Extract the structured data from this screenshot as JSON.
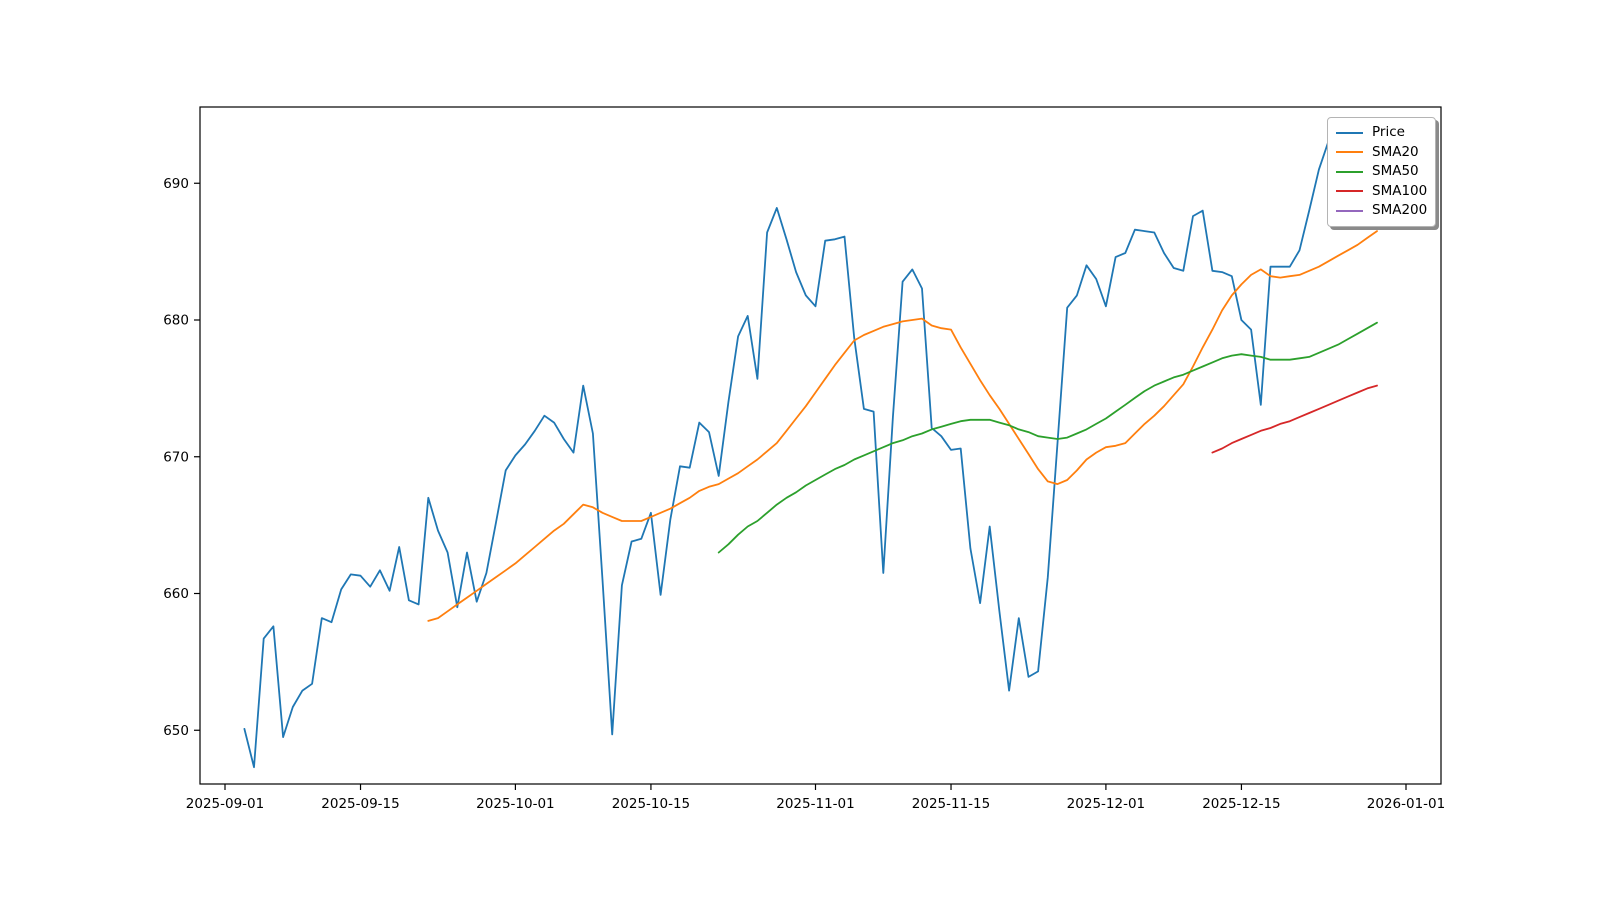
{
  "figure": {
    "background": "#ffffff"
  },
  "axes": {
    "spine_color": "#000000",
    "x_tick_labels": [
      "2025-09-01",
      "2025-09-15",
      "2025-10-01",
      "2025-10-15",
      "2025-11-01",
      "2025-11-15",
      "2025-12-01",
      "2025-12-15",
      "2026-01-01"
    ],
    "y_tick_labels": [
      "650",
      "660",
      "670",
      "680",
      "690"
    ]
  },
  "legend": {
    "position": "upper right",
    "entries": [
      {
        "label": "Price",
        "color": "#1f77b4"
      },
      {
        "label": "SMA20",
        "color": "#ff7f0e"
      },
      {
        "label": "SMA50",
        "color": "#2ca02c"
      },
      {
        "label": "SMA100",
        "color": "#d62728"
      },
      {
        "label": "SMA200",
        "color": "#9467bd"
      }
    ]
  },
  "chart_data": {
    "type": "line",
    "title": "",
    "xlabel": "",
    "ylabel": "",
    "x_axis_kind": "date",
    "xlim": [
      "2025-08-29",
      "2026-01-04"
    ],
    "ylim": [
      646.1,
      695.6
    ],
    "grid": false,
    "legend_position": "upper right",
    "series": [
      {
        "name": "Price",
        "color": "#1f77b4",
        "start": "2025-09-03",
        "values": [
          650.1,
          647.3,
          656.7,
          657.6,
          649.5,
          651.7,
          652.9,
          653.4,
          658.2,
          657.9,
          660.3,
          661.4,
          661.3,
          660.5,
          661.7,
          660.2,
          663.4,
          659.5,
          659.2,
          667.0,
          664.6,
          663.0,
          659.0,
          663.0,
          659.4,
          661.5,
          665.2,
          669.0,
          670.1,
          670.9,
          671.9,
          673.0,
          672.5,
          671.3,
          670.3,
          675.2,
          671.7,
          661.0,
          649.7,
          660.6,
          663.8,
          664.0,
          665.9,
          659.9,
          665.4,
          669.3,
          669.2,
          672.5,
          671.8,
          668.6,
          674.0,
          678.8,
          680.3,
          675.7,
          686.4,
          688.2,
          685.9,
          683.5,
          681.8,
          681.0,
          685.8,
          685.9,
          686.1,
          678.7,
          673.5,
          673.3,
          661.5,
          672.9,
          682.8,
          683.7,
          682.3,
          672.1,
          671.5,
          670.5,
          670.6,
          663.3,
          659.3,
          664.9,
          658.7,
          652.9,
          658.2,
          653.9,
          654.3,
          661.2,
          671.0,
          680.9,
          681.8,
          684.0,
          683.0,
          681.0,
          684.6,
          684.9,
          686.6,
          686.5,
          686.4,
          684.9,
          683.8,
          683.6,
          687.6,
          688.0,
          683.6,
          683.5,
          683.2,
          680.0,
          679.3,
          673.8,
          683.9,
          683.9,
          683.9,
          685.1,
          688.0,
          691.0,
          693.1
        ]
      },
      {
        "name": "SMA20",
        "color": "#ff7f0e",
        "start": "2025-09-22",
        "values": [
          658.0,
          658.2,
          658.7,
          659.2,
          659.7,
          660.2,
          660.7,
          661.2,
          661.7,
          662.2,
          662.8,
          663.4,
          664.0,
          664.6,
          665.1,
          665.8,
          666.5,
          666.3,
          665.9,
          665.6,
          665.3,
          665.3,
          665.3,
          665.6,
          665.9,
          666.2,
          666.6,
          667.0,
          667.5,
          667.8,
          668.0,
          668.4,
          668.8,
          669.3,
          669.8,
          670.4,
          671.0,
          671.9,
          672.8,
          673.7,
          674.7,
          675.7,
          676.7,
          677.6,
          678.5,
          678.9,
          679.2,
          679.5,
          679.7,
          679.9,
          680.0,
          680.1,
          679.6,
          679.4,
          679.3,
          678.0,
          676.8,
          675.6,
          674.5,
          673.5,
          672.4,
          671.3,
          670.2,
          669.1,
          668.2,
          668.0,
          668.3,
          669.0,
          669.8,
          670.3,
          670.7,
          670.8,
          671.0,
          671.7,
          672.4,
          673.0,
          673.7,
          674.5,
          675.3,
          676.6,
          678.0,
          679.3,
          680.7,
          681.8,
          682.6,
          683.3,
          683.7,
          683.2,
          683.1,
          683.2,
          683.3,
          683.6,
          683.9,
          684.3,
          684.7,
          685.1,
          685.5,
          686.0,
          686.5
        ]
      },
      {
        "name": "SMA50",
        "color": "#2ca02c",
        "start": "2025-10-22",
        "values": [
          663.0,
          663.6,
          664.3,
          664.9,
          665.3,
          665.9,
          666.5,
          667.0,
          667.4,
          667.9,
          668.3,
          668.7,
          669.1,
          669.4,
          669.8,
          670.1,
          670.4,
          670.7,
          671.0,
          671.2,
          671.5,
          671.7,
          672.0,
          672.2,
          672.4,
          672.6,
          672.7,
          672.7,
          672.7,
          672.5,
          672.3,
          672.0,
          671.8,
          671.5,
          671.4,
          671.3,
          671.4,
          671.7,
          672.0,
          672.4,
          672.8,
          673.3,
          673.8,
          674.3,
          674.8,
          675.2,
          675.5,
          675.8,
          676.0,
          676.3,
          676.6,
          676.9,
          677.2,
          677.4,
          677.5,
          677.4,
          677.3,
          677.1,
          677.1,
          677.1,
          677.2,
          677.3,
          677.6,
          677.9,
          678.2,
          678.6,
          679.0,
          679.4,
          679.8
        ]
      },
      {
        "name": "SMA100",
        "color": "#d62728",
        "start": "2025-12-12",
        "values": [
          670.3,
          670.6,
          671.0,
          671.3,
          671.6,
          671.9,
          672.1,
          672.4,
          672.6,
          672.9,
          673.2,
          673.5,
          673.8,
          674.1,
          674.4,
          674.7,
          675.0,
          675.2
        ]
      },
      {
        "name": "SMA200",
        "color": "#9467bd",
        "start": null,
        "values": []
      }
    ]
  }
}
